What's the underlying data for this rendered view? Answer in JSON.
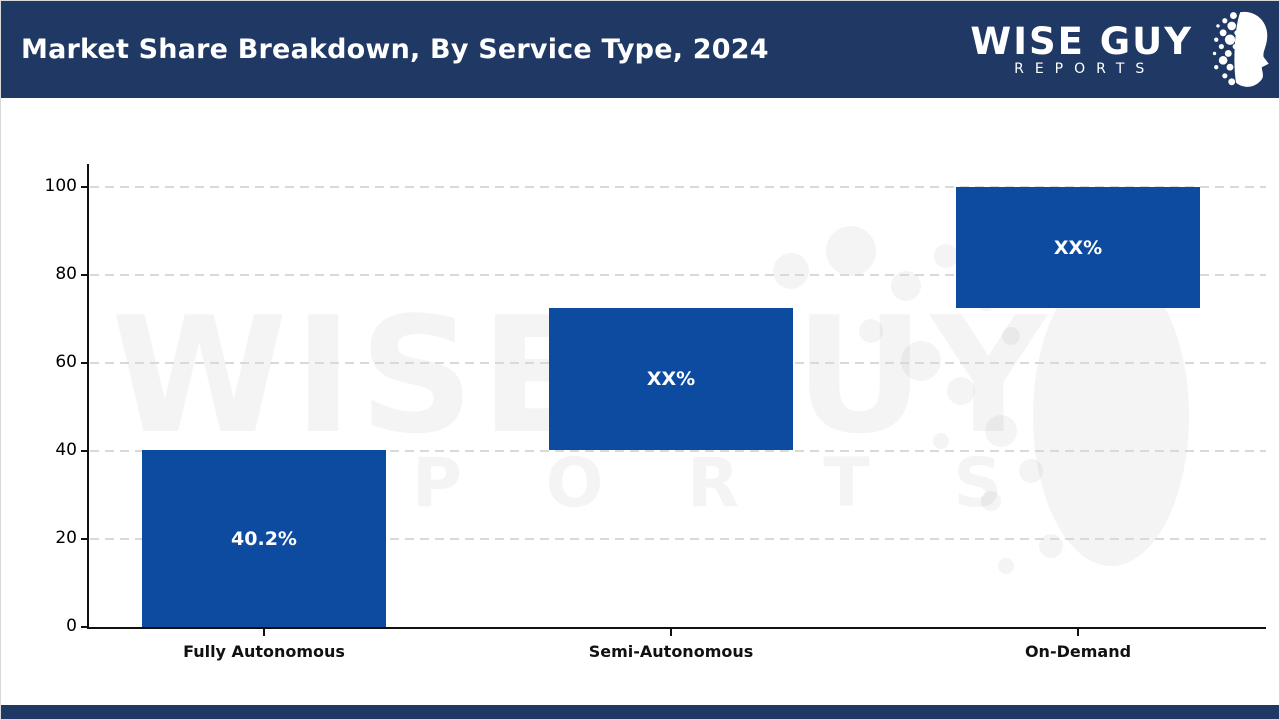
{
  "header": {
    "title": "Market Share Breakdown, By Service Type, 2024",
    "logo": {
      "line1": "WISE GUY",
      "line2": "REPORTS"
    }
  },
  "watermark": {
    "line1": "WISE GUY",
    "line2": "R E P O R T S"
  },
  "chart_data": {
    "type": "bar",
    "subtype": "floating-waterfall",
    "title": "Market Share Breakdown, By Service Type, 2024",
    "categories": [
      "Fully Autonomous",
      "Semi-Autonomous",
      "On-Demand"
    ],
    "segments": [
      {
        "category": "Fully Autonomous",
        "start": 0,
        "end": 40.2,
        "label": "40.2%"
      },
      {
        "category": "Semi-Autonomous",
        "start": 40.2,
        "end": 72.5,
        "label": "XX%"
      },
      {
        "category": "On-Demand",
        "start": 72.5,
        "end": 100,
        "label": "XX%"
      }
    ],
    "yticks": [
      0,
      20,
      40,
      60,
      80,
      100
    ],
    "ylim": [
      0,
      105
    ],
    "xlabel": "",
    "ylabel": "",
    "grid": "horizontal-dashed",
    "legend": "none",
    "bar_color": "#0d4ba1",
    "bar_label_color": "#ffffff"
  },
  "colors": {
    "header_bg": "#1f3864",
    "footer_bg": "#1f3864",
    "bar": "#0d4ba1",
    "grid": "#d9d9d9",
    "axis": "#111111",
    "title_text": "#ffffff",
    "watermark": "rgba(0,0,0,0.045)"
  }
}
